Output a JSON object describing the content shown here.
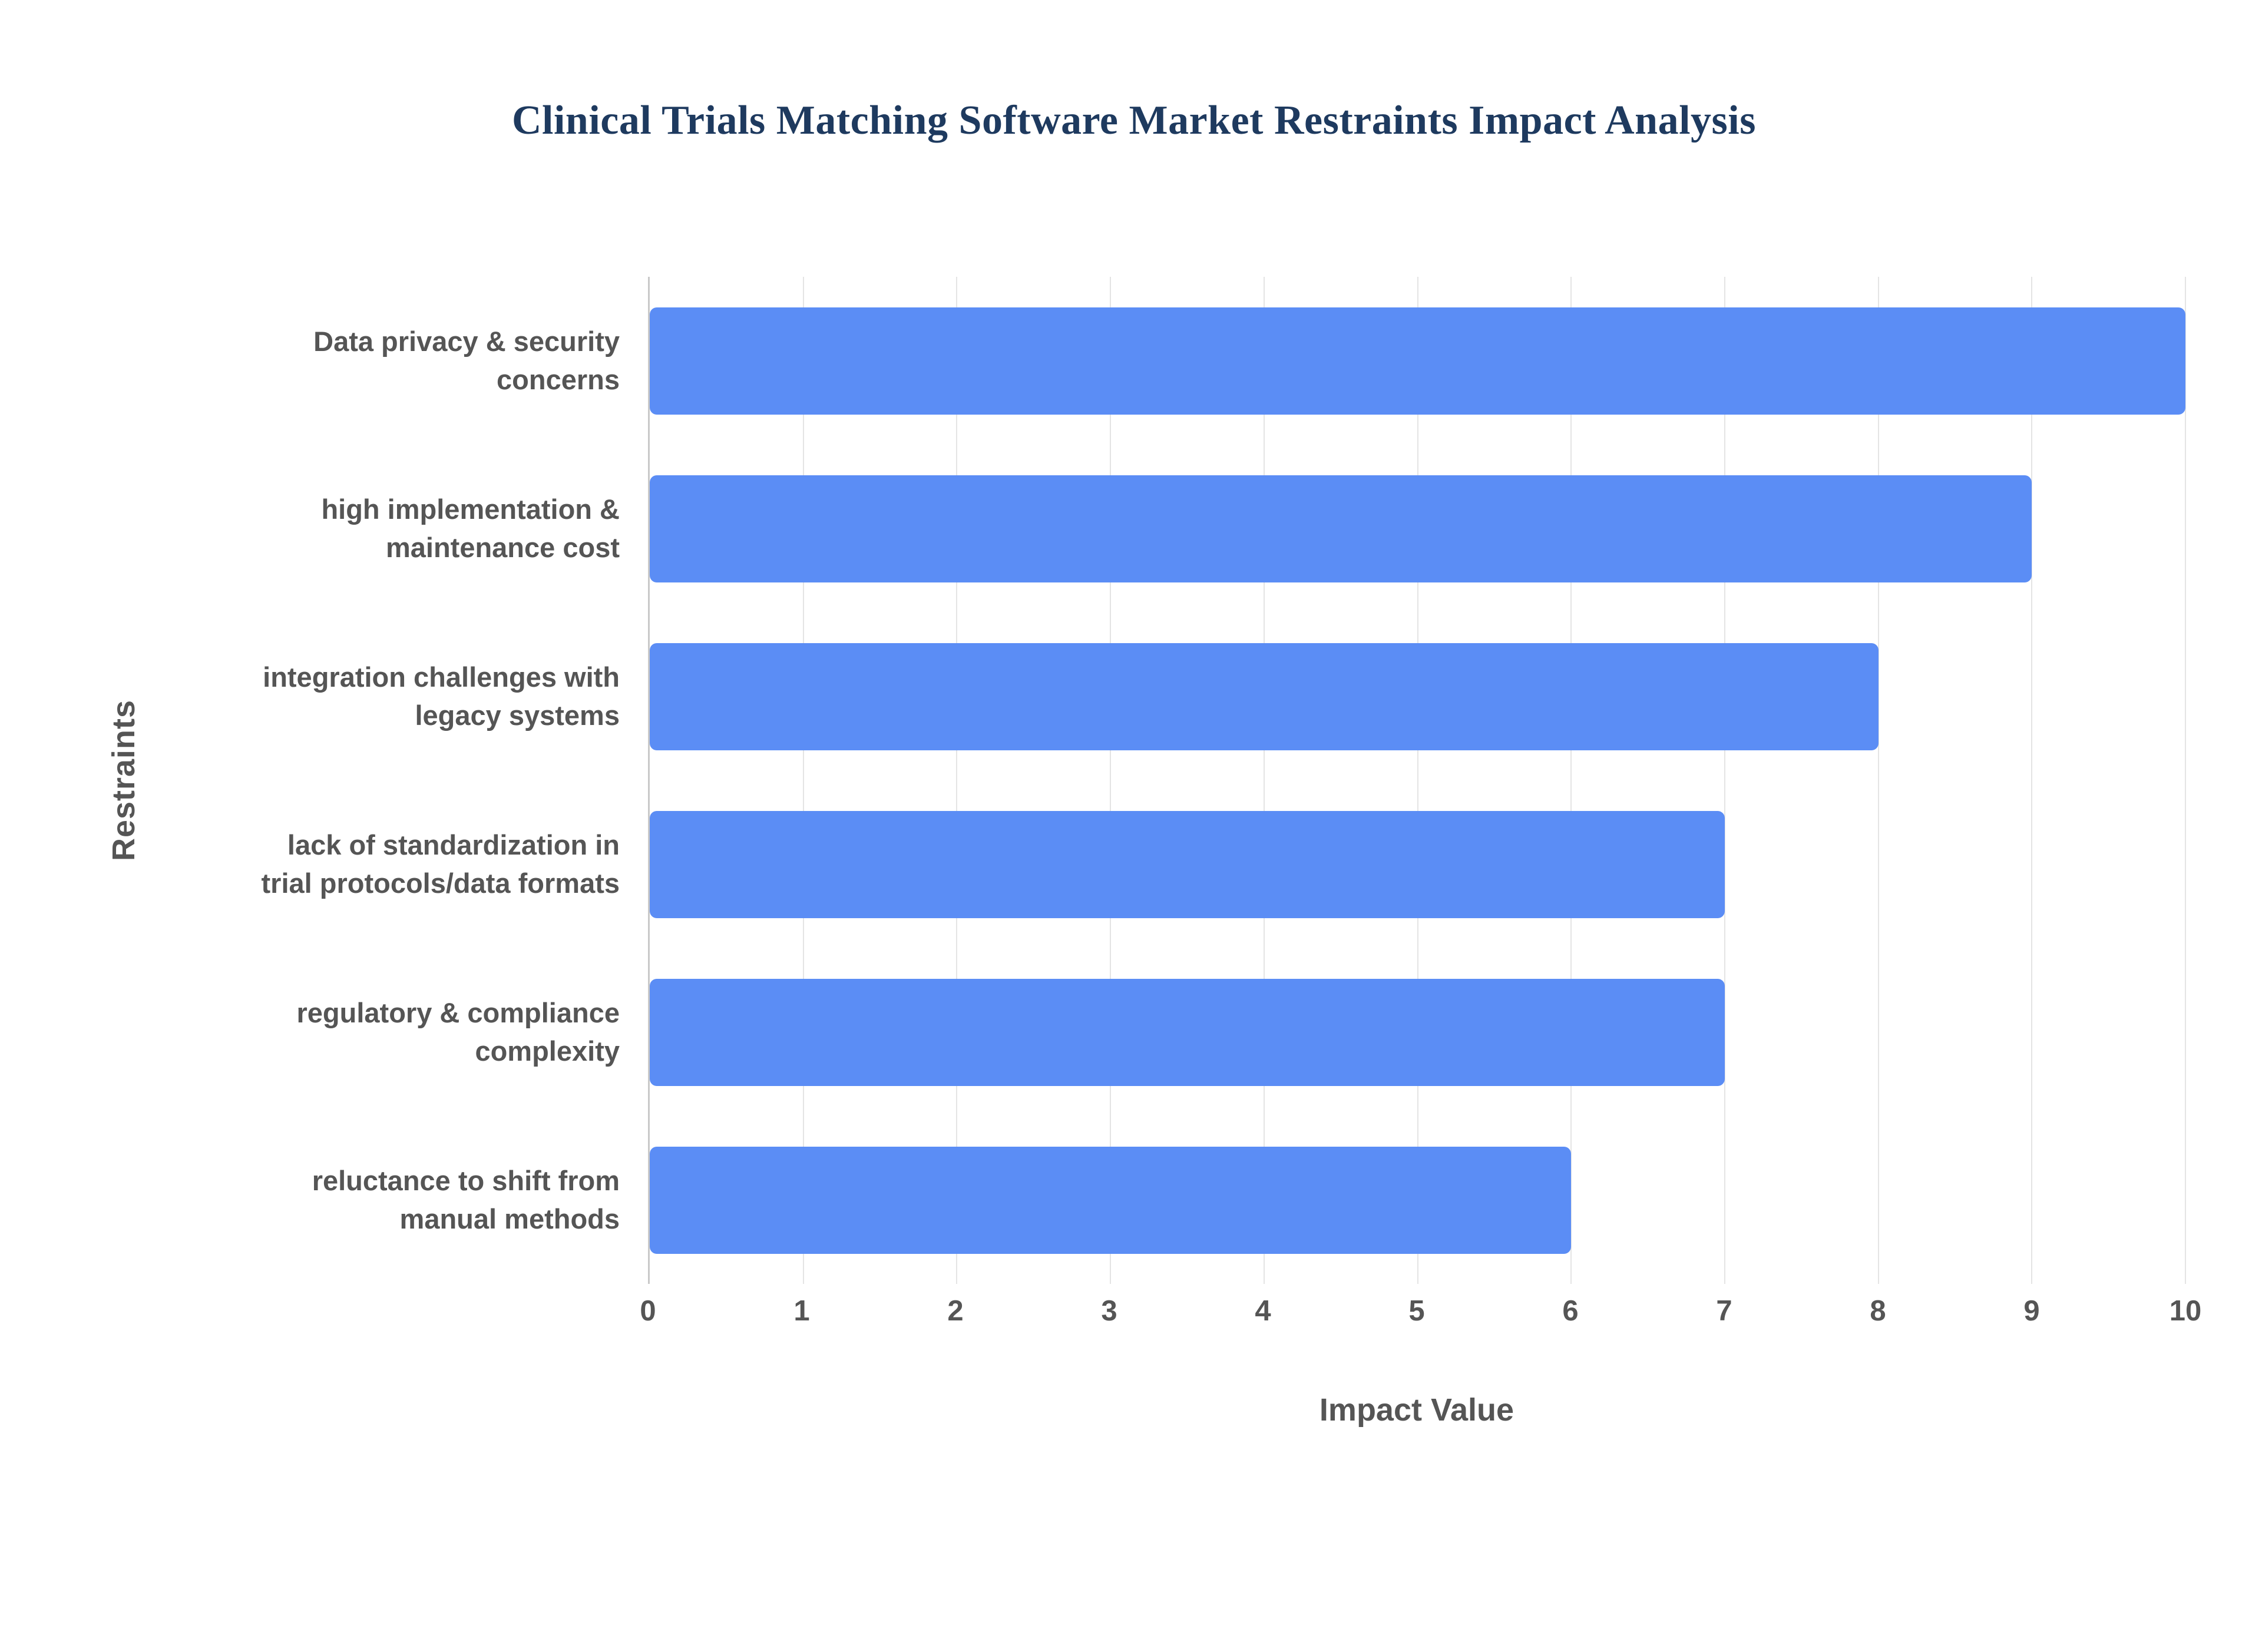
{
  "page": {
    "title": "Clinical Trials Matching Software Market Restraints Impact Analysis"
  },
  "chart_data": {
    "type": "bar",
    "orientation": "horizontal",
    "title": "Clinical Trials Matching Software Market Restraints Impact Analysis",
    "xlabel": "Impact Value",
    "ylabel": "Restraints",
    "xlim": [
      0,
      10
    ],
    "xticks": [
      0,
      1,
      2,
      3,
      4,
      5,
      6,
      7,
      8,
      9,
      10
    ],
    "grid": true,
    "legend": false,
    "bar_color": "#5b8df5",
    "categories": [
      "Data privacy & security concerns",
      "high implementation & maintenance cost",
      "integration challenges with legacy systems",
      "lack of standardization in trial protocols/data formats",
      "regulatory & compliance complexity",
      "reluctance to shift from manual methods"
    ],
    "category_lines": [
      [
        "Data privacy & security",
        "concerns"
      ],
      [
        "high implementation &",
        "maintenance cost"
      ],
      [
        "integration challenges with",
        "legacy systems"
      ],
      [
        "lack of standardization in",
        "trial protocols/data formats"
      ],
      [
        "regulatory & compliance",
        "complexity"
      ],
      [
        "reluctance to shift from",
        "manual methods"
      ]
    ],
    "values": [
      10,
      9,
      8,
      7,
      7,
      6
    ]
  }
}
